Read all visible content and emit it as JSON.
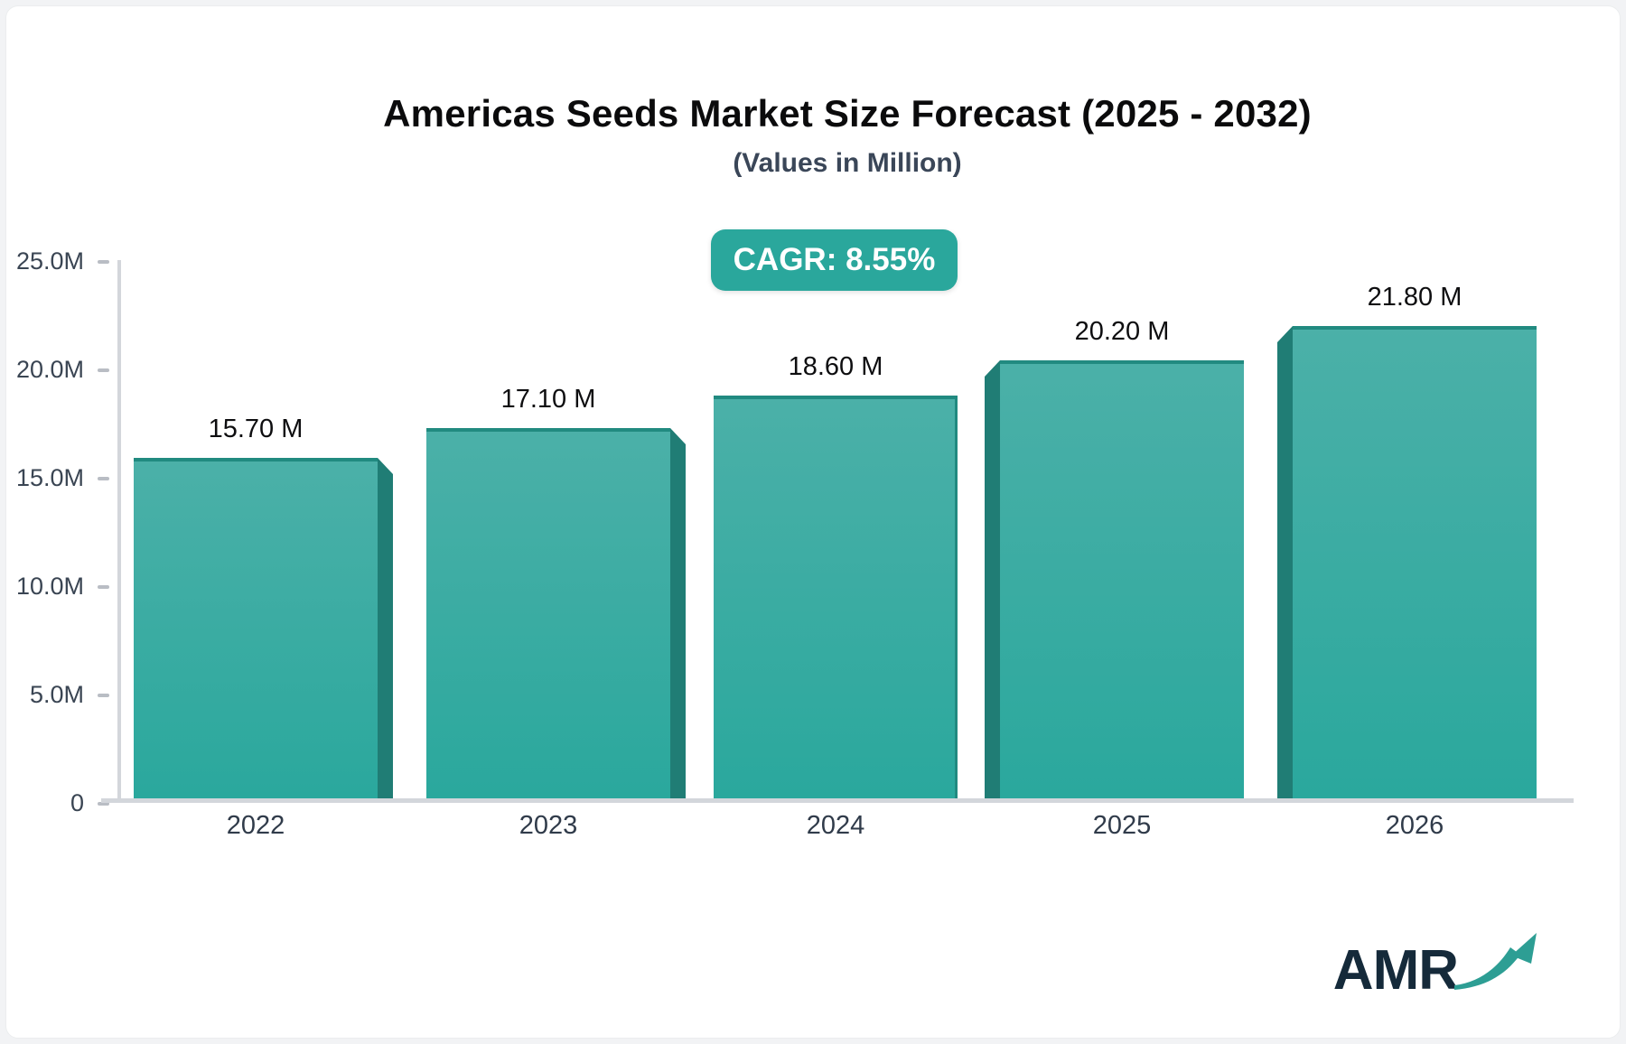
{
  "page": {
    "background": "#f2f3f5",
    "card_background": "#ffffff"
  },
  "header": {
    "title": "Americas Seeds Market Size Forecast (2025 - 2032)",
    "subtitle": "(Values in Million)"
  },
  "badge": {
    "label": "CAGR: 8.55%",
    "background": "#2aa79c",
    "text_color": "#ffffff"
  },
  "chart_data": {
    "type": "bar",
    "title": "Americas Seeds Market Size Forecast (2025 - 2032)",
    "subtitle": "(Values in Million)",
    "unit": "Million",
    "categories": [
      "2022",
      "2023",
      "2024",
      "2025",
      "2026"
    ],
    "values": [
      15.7,
      17.1,
      18.6,
      20.2,
      21.8
    ],
    "value_labels": [
      "15.70 M",
      "17.10 M",
      "18.60 M",
      "20.20 M",
      "21.80 M"
    ],
    "cagr_label": "CAGR: 8.55%",
    "ylim": [
      0,
      25
    ],
    "yticks": [
      {
        "value": 0,
        "label": "0"
      },
      {
        "value": 5,
        "label": "5.0M"
      },
      {
        "value": 10,
        "label": "10.0M"
      },
      {
        "value": 15,
        "label": "15.0M"
      },
      {
        "value": 20,
        "label": "20.0M"
      },
      {
        "value": 25,
        "label": "25.0M"
      }
    ],
    "grid": false,
    "legend": false,
    "bar_3d_sides": [
      "right",
      "right",
      "none",
      "left",
      "left"
    ],
    "colors": {
      "bar_top": "#4bb0a8",
      "bar_bottom": "#2aa89d",
      "bar_edge": "#218a80",
      "bar_side": "#207d75",
      "axis_line": "#d3d6db",
      "tick_mark": "#b9bdc4",
      "y_label": "#3a4553",
      "x_label": "#303b4a",
      "value_label": "#0e0e10"
    }
  },
  "logo": {
    "text": "AMR",
    "text_color": "#152a3a",
    "arrow_color": "#2d9e94"
  }
}
